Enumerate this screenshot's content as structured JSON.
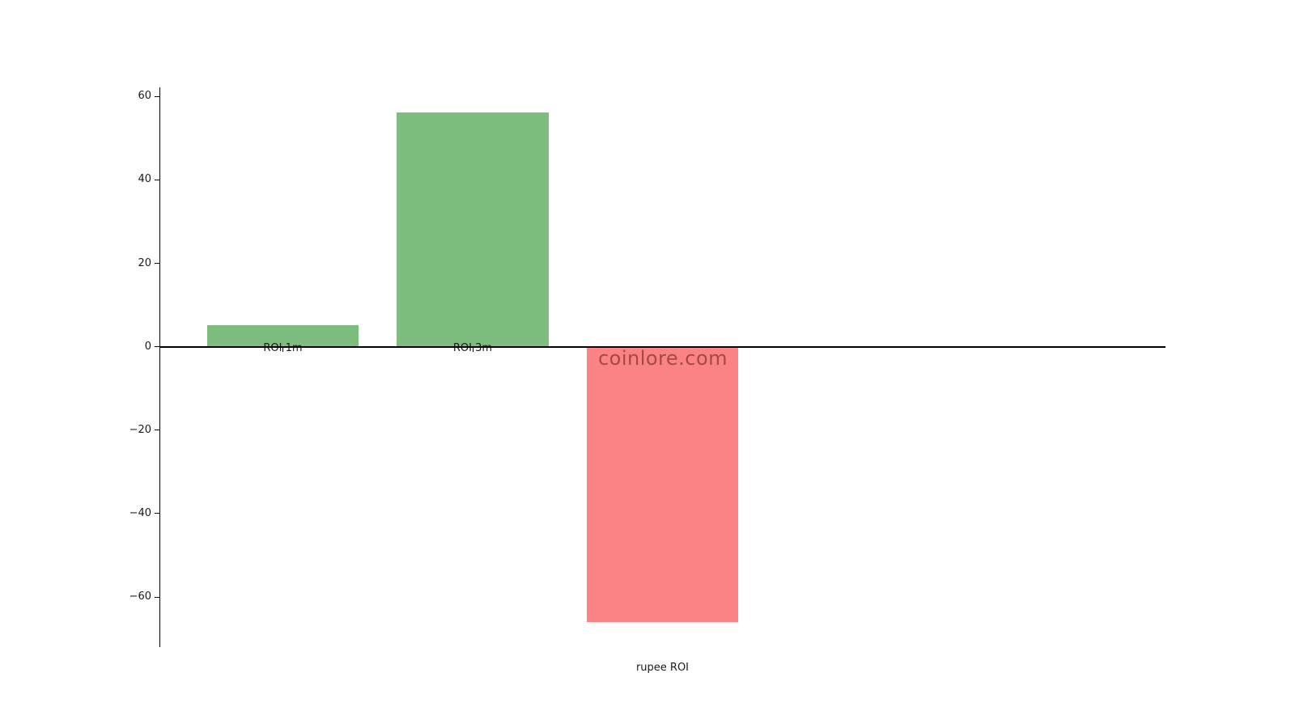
{
  "watermark": {
    "text": "coinlore.com",
    "color": "#a34a46"
  },
  "chart_data": {
    "type": "bar",
    "title": "",
    "xlabel": "rupee ROI",
    "ylabel": "",
    "categories": [
      "ROI 1m",
      "ROI 3m",
      ""
    ],
    "values": [
      5,
      56,
      -66
    ],
    "bar_colors": [
      "#7dbd7d",
      "#7dbd7d",
      "#fb8383"
    ],
    "bar_width_ratio": 0.8,
    "x_positions": [
      0,
      1,
      2
    ],
    "xlim": [
      -0.65,
      4.65
    ],
    "ylim": [
      -72.1,
      62.1
    ],
    "yticks": [
      60,
      40,
      20,
      0,
      -20,
      -40,
      -60
    ],
    "ytick_labels": [
      "60",
      "40",
      "20",
      "0",
      "−20",
      "−40",
      "−60"
    ],
    "grid": false,
    "legend": "none",
    "axis_color": "#000000",
    "text_color": "#1a1a1a"
  }
}
